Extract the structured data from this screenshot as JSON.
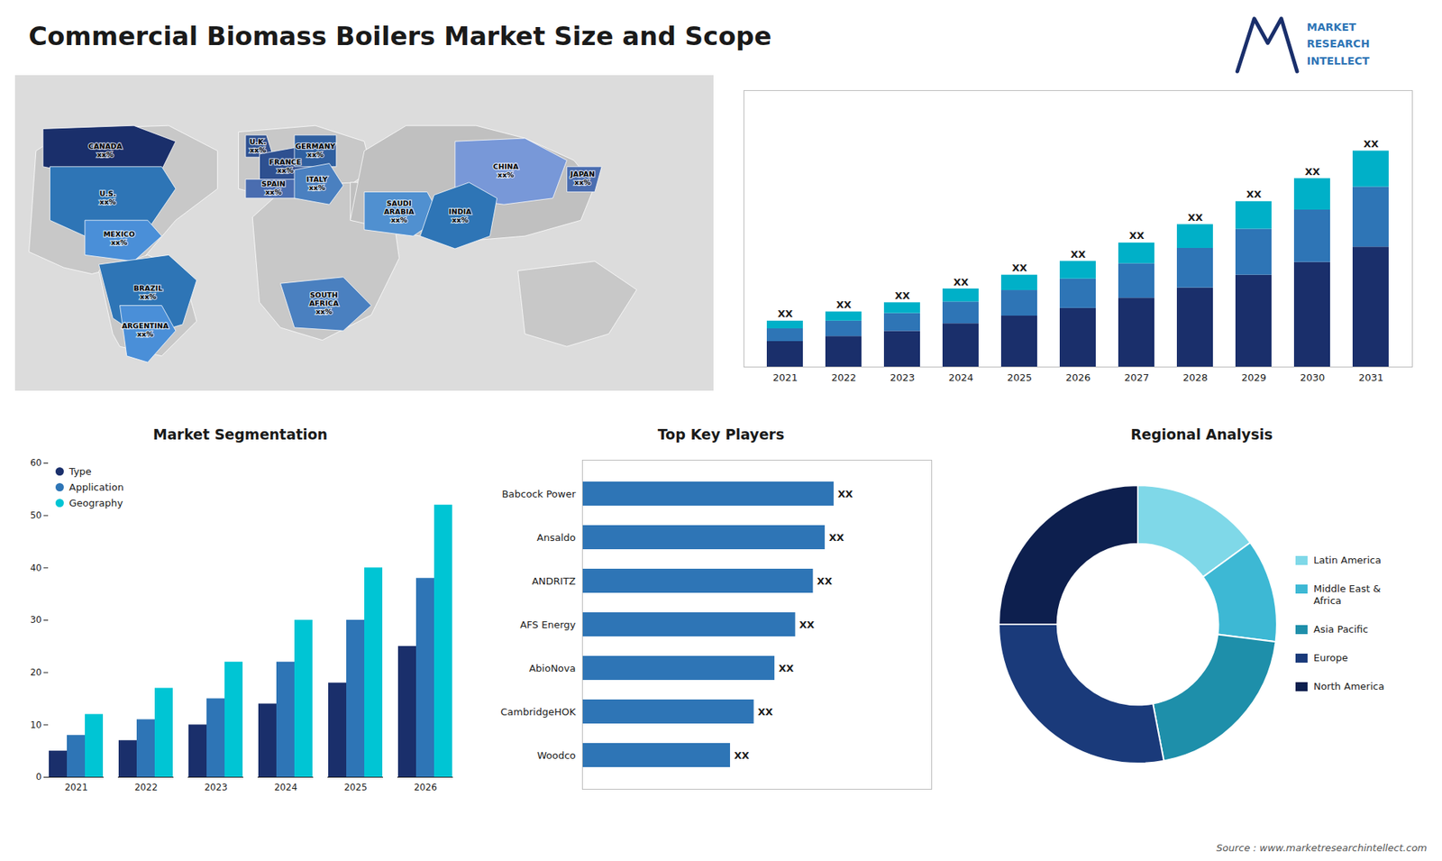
{
  "title": "Commercial Biomass Boilers Market Size and Scope",
  "logo": [
    "MARKET",
    "RESEARCH",
    "INTELLECT"
  ],
  "source": "Source : www.marketresearchintellect.com",
  "chart_data": [
    {
      "type": "map",
      "categories": [
        "CANADA",
        "U.S.",
        "MEXICO",
        "BRAZIL",
        "ARGENTINA",
        "U.K.",
        "FRANCE",
        "SPAIN",
        "GERMANY",
        "ITALY",
        "SAUDI\nARABIA",
        "SOUTH\nAFRICA",
        "CHINA",
        "INDIA",
        "JAPAN"
      ],
      "labels": [
        "xx%",
        "xx%",
        "xx%",
        "xx%",
        "xx%",
        "xx%",
        "xx%",
        "xx%",
        "xx%",
        "xx%",
        "xx%",
        "xx%",
        "xx%",
        "xx%",
        "xx%"
      ],
      "colors": [
        "#1a2f6b",
        "#2e75b6",
        "#4a8fd8",
        "#2e75b6",
        "#4a8fd8",
        "#2e5090",
        "#2e5090",
        "#4a6db0",
        "#3060a0",
        "#4a80c0",
        "#5090d0",
        "#4a80c0",
        "#7898d8",
        "#2e75b6",
        "#4a6db0"
      ]
    },
    {
      "type": "bar",
      "stacked": true,
      "categories": [
        "2021",
        "2022",
        "2023",
        "2024",
        "2025",
        "2026",
        "2027",
        "2028",
        "2029",
        "2030",
        "2031"
      ],
      "series": [
        {
          "color": "#1a2f6b",
          "values": [
            1.0,
            1.2,
            1.4,
            1.7,
            2.0,
            2.3,
            2.7,
            3.1,
            3.6,
            4.1,
            4.7
          ]
        },
        {
          "color": "#2e75b6",
          "values": [
            0.5,
            0.6,
            0.7,
            0.85,
            1.0,
            1.15,
            1.35,
            1.55,
            1.8,
            2.05,
            2.35
          ]
        },
        {
          "color": "#00b0c8",
          "values": [
            0.3,
            0.36,
            0.42,
            0.51,
            0.6,
            0.69,
            0.81,
            0.93,
            1.08,
            1.23,
            1.41
          ]
        }
      ],
      "ylim": [
        0,
        10.8288
      ],
      "yticks": [],
      "tick_labels": "x",
      "grid": false,
      "data_labels": true,
      "value_labels": [
        "XX",
        "XX",
        "XX",
        "XX",
        "XX",
        "XX",
        "XX",
        "XX",
        "XX",
        "XX",
        "XX"
      ]
    },
    {
      "type": "bar",
      "title": "Market Segmentation",
      "categories": [
        "2021",
        "2022",
        "2023",
        "2024",
        "2025",
        "2026"
      ],
      "series": [
        {
          "name": "Type",
          "color": "#1a2f6b",
          "values": [
            5,
            7,
            10,
            14,
            18,
            25
          ]
        },
        {
          "name": "Application",
          "color": "#2e75b6",
          "values": [
            8,
            11,
            15,
            22,
            30,
            38
          ]
        },
        {
          "name": "Geography",
          "color": "#00c5d4",
          "values": [
            12,
            17,
            22,
            30,
            40,
            52
          ]
        }
      ],
      "ylim": [
        0,
        60
      ],
      "yticks": [
        0,
        10,
        20,
        30,
        40,
        50,
        60
      ],
      "grid": false,
      "legend": "upper left"
    },
    {
      "type": "bar",
      "orientation": "horizontal",
      "title": "Top Key Players",
      "categories": [
        "Babcock Power",
        "Ansaldo",
        "ANDRITZ",
        "AFS Energy",
        "AbioNova",
        "CambridgeHOK",
        "Woodco"
      ],
      "values": [
        0.85,
        0.82,
        0.78,
        0.72,
        0.65,
        0.58,
        0.5
      ],
      "color": "#2e75b6",
      "xlim": [
        0,
        1.18
      ],
      "xticks": [],
      "tick_labels": "y",
      "grid": false,
      "data_labels": true,
      "value_labels": [
        "XX",
        "XX",
        "XX",
        "XX",
        "XX",
        "XX",
        "XX"
      ]
    },
    {
      "type": "donut",
      "title": "Regional Analysis",
      "categories": [
        "Latin America",
        "Middle East &\nAfrica",
        "Asia Pacific",
        "Europe",
        "North America"
      ],
      "values": [
        15,
        12,
        20,
        28,
        25
      ],
      "colors": [
        "#7fd8e8",
        "#3db8d4",
        "#1e8faa",
        "#1a3a7a",
        "#0d1f4e"
      ],
      "legend": "right"
    }
  ]
}
